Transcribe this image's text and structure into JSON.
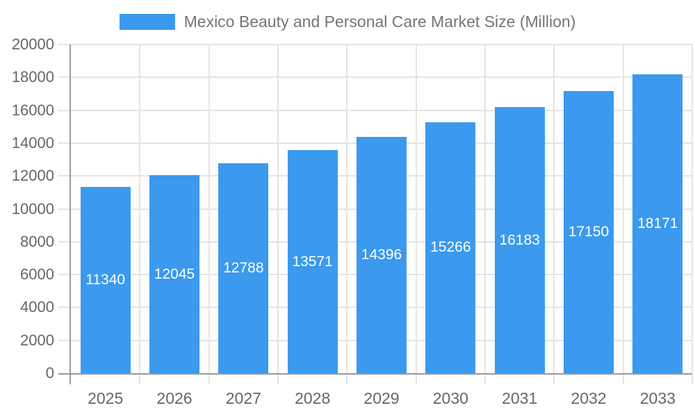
{
  "legend": {
    "label": "Mexico Beauty and Personal Care Market Size (Million)"
  },
  "chart_data": {
    "type": "bar",
    "title": "Mexico Beauty and Personal Care Market Size (Million)",
    "categories": [
      "2025",
      "2026",
      "2027",
      "2028",
      "2029",
      "2030",
      "2031",
      "2032",
      "2033"
    ],
    "values": [
      11340,
      12045,
      12788,
      13571,
      14396,
      15266,
      16183,
      17150,
      18171
    ],
    "bar_labels": [
      "11340",
      "12045",
      "12788",
      "13571",
      "14396",
      "15266",
      "16183",
      "17150",
      "18171"
    ],
    "xlabel": "",
    "ylabel": "",
    "ylim": [
      0,
      20000
    ],
    "yticks": [
      0,
      2000,
      4000,
      6000,
      8000,
      10000,
      12000,
      14000,
      16000,
      18000,
      20000
    ],
    "grid": true,
    "legend_position": "top-center",
    "colors": {
      "bar": "#3B99EE",
      "bar_label": "#FFFFFF",
      "grid": "#E4E4E4",
      "axis": "#999999",
      "tick_label": "#666666",
      "title": "#757575",
      "background": "#FFFFFF"
    }
  }
}
